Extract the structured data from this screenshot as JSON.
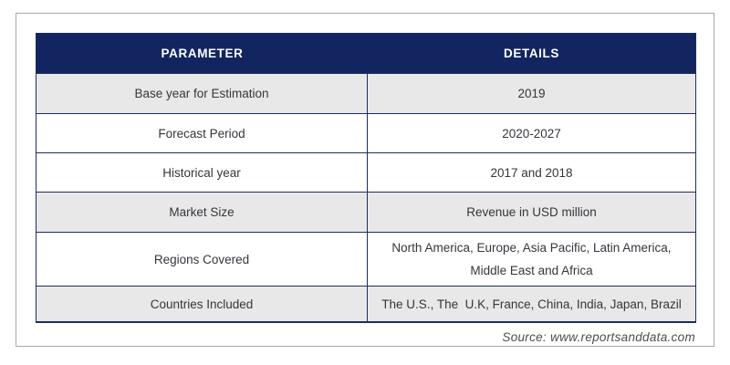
{
  "table": {
    "headers": {
      "parameter": "PARAMETER",
      "details": "DETAILS"
    },
    "rows": [
      {
        "parameter": "Base year for Estimation",
        "details": "2019"
      },
      {
        "parameter": "Forecast Period",
        "details": "2020-2027"
      },
      {
        "parameter": "Historical year",
        "details": "2017 and 2018"
      },
      {
        "parameter": "Market Size",
        "details": "Revenue in USD million"
      },
      {
        "parameter": "Regions Covered",
        "details": "North America, Europe, Asia Pacific, Latin America, Middle East and Africa"
      },
      {
        "parameter": "Countries Included",
        "details": "The U.S., The  U.K, France, China, India, Japan, Brazil"
      }
    ]
  },
  "footer": {
    "source": "Source: www.reportsanddata.com"
  },
  "colors": {
    "header_bg": "#122560",
    "header_text": "#ffffff",
    "table_border": "#1d2d62",
    "row_alt_bg": "#e8e8e8",
    "body_text": "#35353d",
    "source_text": "#4b4b53",
    "card_border": "#a8a8a8"
  }
}
